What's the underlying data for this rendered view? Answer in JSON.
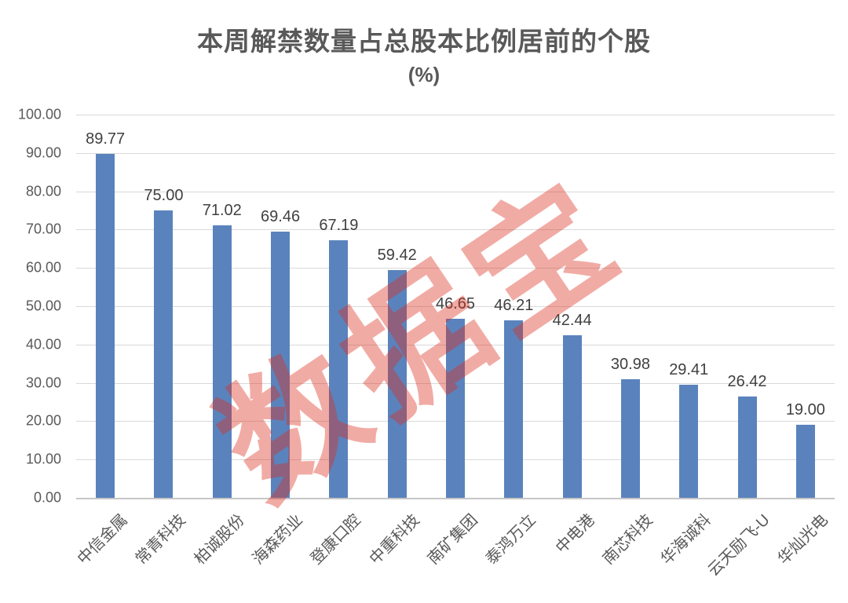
{
  "watermark": "数据宝",
  "colors": {
    "bar": "#5a83bd",
    "title": "#595959",
    "axis_label": "#595959",
    "value_label": "#404040",
    "gridline": "#d9d9d9",
    "axis_line": "#c6c6c6",
    "watermark_red": "#dc2d1e"
  },
  "chart_data": {
    "type": "bar",
    "title": "本周解禁数量占总股本比例居前的个股",
    "subtitle": "(%)",
    "xlabel": "",
    "ylabel": "",
    "categories": [
      "中信金属",
      "常青科技",
      "柏诚股份",
      "海森药业",
      "登康口腔",
      "中重科技",
      "南矿集团",
      "泰鸿万立",
      "中电港",
      "南芯科技",
      "华海诚科",
      "云天励飞-U",
      "华灿光电"
    ],
    "values": [
      89.77,
      75.0,
      71.02,
      69.46,
      67.19,
      59.42,
      46.65,
      46.21,
      42.44,
      30.98,
      29.41,
      26.42,
      19.0
    ],
    "ylim": [
      0,
      100
    ],
    "ytick_step": 10,
    "ytick_decimals": 2,
    "value_label_decimals": 2,
    "grid": true,
    "legend": false
  }
}
